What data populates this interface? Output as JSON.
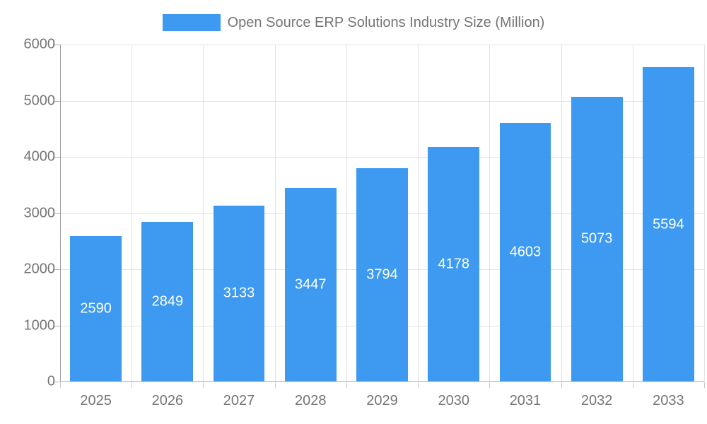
{
  "legend": {
    "label": "Open Source ERP Solutions Industry Size (Million)",
    "swatch_color": "#3d9af0"
  },
  "colors": {
    "bar": "#3d9af0",
    "grid": "#e3e3e3",
    "axis": "#9e9e9e",
    "text": "#757575",
    "bar_label": "#ffffff",
    "background": "#ffffff"
  },
  "chart_data": {
    "type": "bar",
    "title": "Open Source ERP Solutions Industry Size (Million)",
    "categories": [
      "2025",
      "2026",
      "2027",
      "2028",
      "2029",
      "2030",
      "2031",
      "2032",
      "2033"
    ],
    "values": [
      2590,
      2849,
      3133,
      3447,
      3794,
      4178,
      4603,
      5073,
      5594
    ],
    "xlabel": "",
    "ylabel": "",
    "ylim": [
      0,
      6000
    ],
    "ytick_interval": 1000,
    "yticks": [
      0,
      1000,
      2000,
      3000,
      4000,
      5000,
      6000
    ],
    "grid": true,
    "legend_position": "top-center",
    "bar_labels_inside": true
  }
}
